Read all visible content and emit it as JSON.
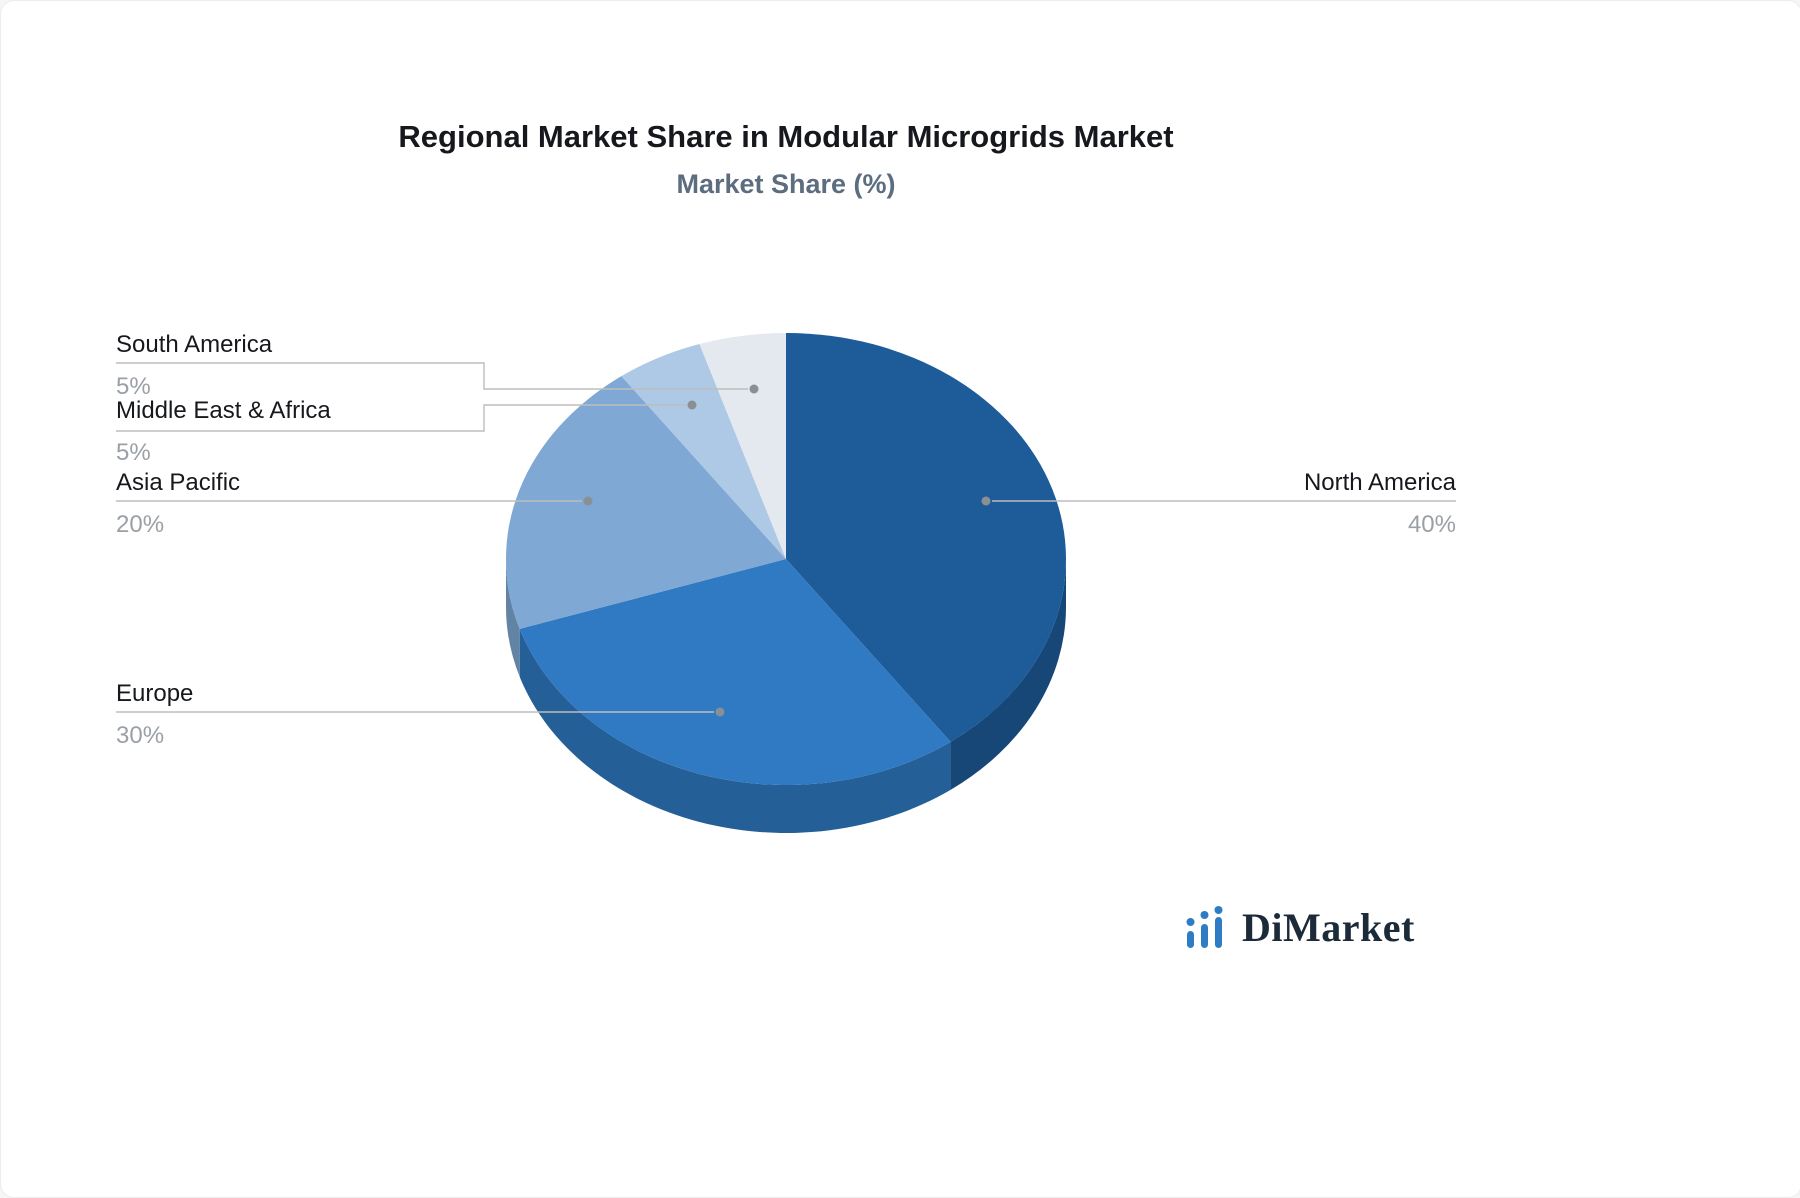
{
  "chart_data": {
    "type": "pie",
    "title": "Regional Market Share in Modular Microgrids Market",
    "subtitle": "Market Share (%)",
    "unit": "%",
    "categories": [
      "North America",
      "Europe",
      "Asia Pacific",
      "Middle East & Africa",
      "South America"
    ],
    "values": [
      40,
      30,
      20,
      5,
      5
    ],
    "values_display": [
      "40%",
      "30%",
      "20%",
      "5%",
      "5%"
    ],
    "colors": [
      "#1d5b99",
      "#2f7ac2",
      "#7fa8d4",
      "#aec9e6",
      "#e4e9ef"
    ],
    "start_angle_deg": -90,
    "direction": "clockwise",
    "style": "3d",
    "legend_position": "none",
    "label_layout": "callout-lines"
  },
  "branding": {
    "logo_text": "DiMarket",
    "icon": "bar-chart-icon",
    "icon_color": "#2e7cc4",
    "text_color": "#1c2b3a"
  }
}
